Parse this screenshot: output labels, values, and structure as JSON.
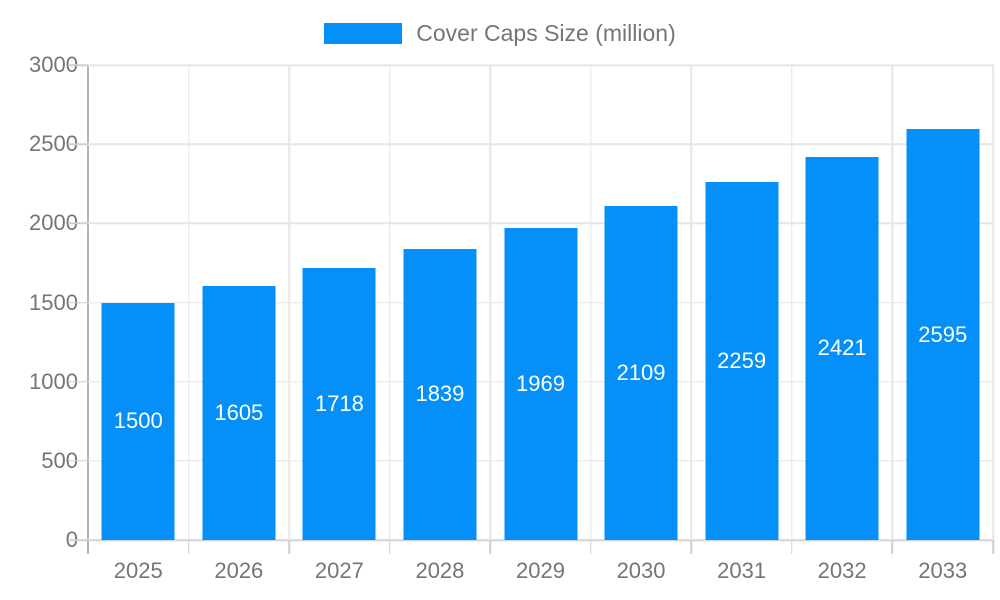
{
  "legend": {
    "label": "Cover Caps Size (million)"
  },
  "chart_data": {
    "type": "bar",
    "title": "Cover Caps Size (million)",
    "series_name": "Cover Caps Size (million)",
    "categories": [
      "2025",
      "2026",
      "2027",
      "2028",
      "2029",
      "2030",
      "2031",
      "2032",
      "2033"
    ],
    "values": [
      1500,
      1605,
      1718,
      1839,
      1969,
      2109,
      2259,
      2421,
      2595
    ],
    "xlabel": "",
    "ylabel": "",
    "ylim": [
      0,
      3000
    ],
    "yticks": [
      0,
      500,
      1000,
      1500,
      2000,
      2500,
      3000
    ],
    "grid": true,
    "legend_position": "top-center",
    "bar_color": "#0490f8",
    "value_label_color": "#ffffff",
    "axis_text_color": "#757575",
    "gridline_color": "#e6e6e9"
  }
}
